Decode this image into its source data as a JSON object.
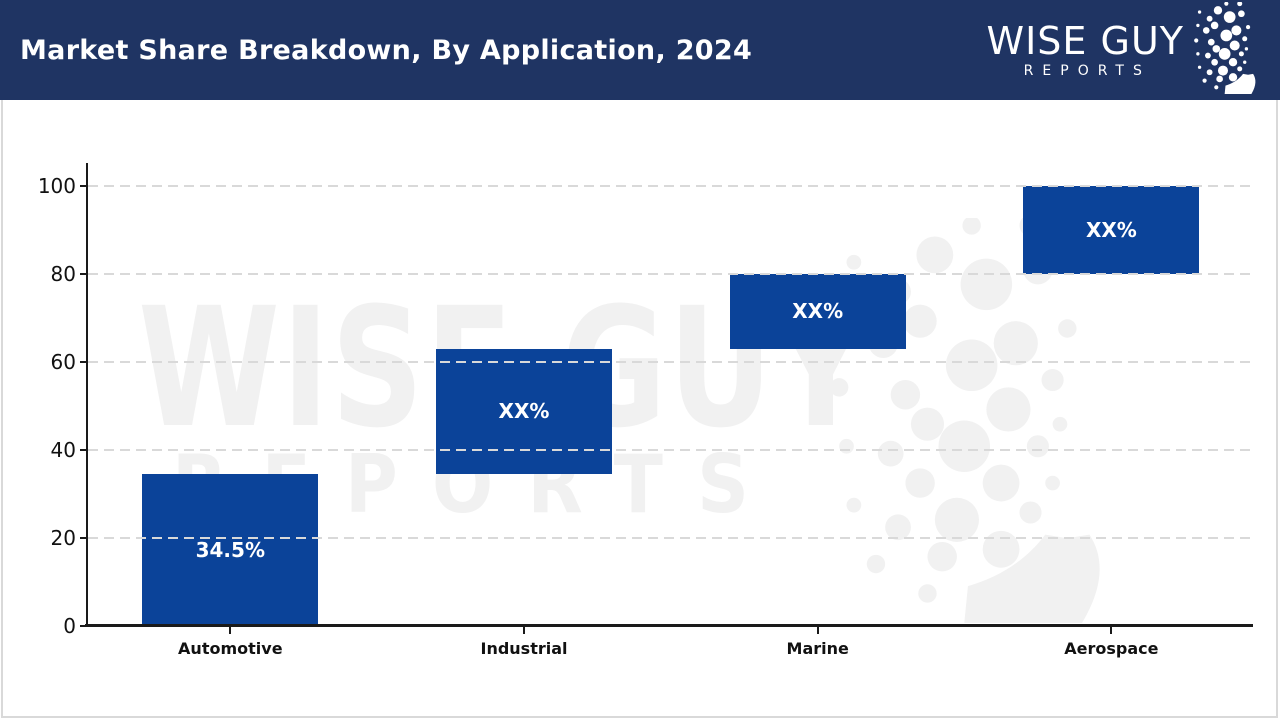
{
  "header": {
    "title": "Market Share Breakdown, By Application, 2024",
    "logo": {
      "line1": "WISE GUY",
      "line2": "REPORTS"
    }
  },
  "watermark": {
    "line1": "WISE GUY",
    "line2": "REPORTS"
  },
  "colors": {
    "header_bg": "#1f3463",
    "bar": "#0b4399",
    "bar_label_text": "#ffffff",
    "title_text": "#ffffff",
    "grid": "#d9d9d9",
    "axis": "#1a1a1a",
    "watermark": "#f1f1f1",
    "card_border": "#d9d9d9"
  },
  "chart_data": {
    "type": "bar",
    "subtype": "waterfall-floating-bars",
    "title": "Market Share Breakdown, By Application, 2024",
    "categories": [
      "Automotive",
      "Industrial",
      "Marine",
      "Aerospace"
    ],
    "segments": [
      {
        "category": "Automotive",
        "start": 0,
        "end": 34.5,
        "label": "34.5%"
      },
      {
        "category": "Industrial",
        "start": 34.5,
        "end": 63,
        "label": "XX%"
      },
      {
        "category": "Marine",
        "start": 63,
        "end": 80,
        "label": "XX%"
      },
      {
        "category": "Aerospace",
        "start": 80,
        "end": 100,
        "label": "XX%"
      }
    ],
    "y_ticks": [
      0,
      20,
      40,
      60,
      80,
      100
    ],
    "ylim": [
      0,
      105
    ],
    "xlabel": "",
    "ylabel": "",
    "grid": "dashed-horizontal",
    "legend": "none"
  }
}
